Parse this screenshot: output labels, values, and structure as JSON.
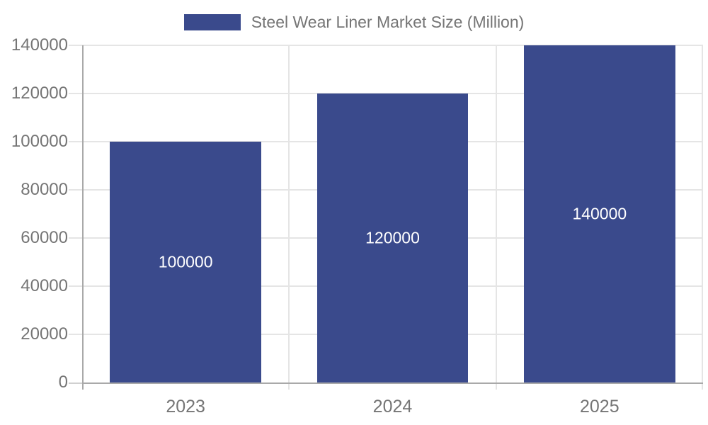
{
  "chart_data": {
    "type": "bar",
    "title": "Steel Wear Liner Market Size (Million)",
    "categories": [
      "2023",
      "2024",
      "2025"
    ],
    "values": [
      100000,
      120000,
      140000
    ],
    "series": [
      {
        "name": "Steel Wear Liner Market Size (Million)",
        "values": [
          100000,
          120000,
          140000
        ]
      }
    ],
    "bar_value_labels": [
      "100000",
      "120000",
      "140000"
    ],
    "xlabel": "",
    "ylabel": "",
    "ylim": [
      0,
      140000
    ],
    "yticks": [
      0,
      20000,
      40000,
      60000,
      80000,
      100000,
      120000,
      140000
    ],
    "grid": true,
    "legend_position": "top-center"
  },
  "legend": {
    "label": "Steel Wear Liner Market Size (Million)"
  },
  "colors": {
    "bar": "#3A4A8C",
    "bar_label": "#ffffff",
    "grid": "#e5e5e5",
    "axis": "#a9a9a9",
    "tick": "#d0d0d0",
    "text": "#757575",
    "background": "#ffffff"
  }
}
